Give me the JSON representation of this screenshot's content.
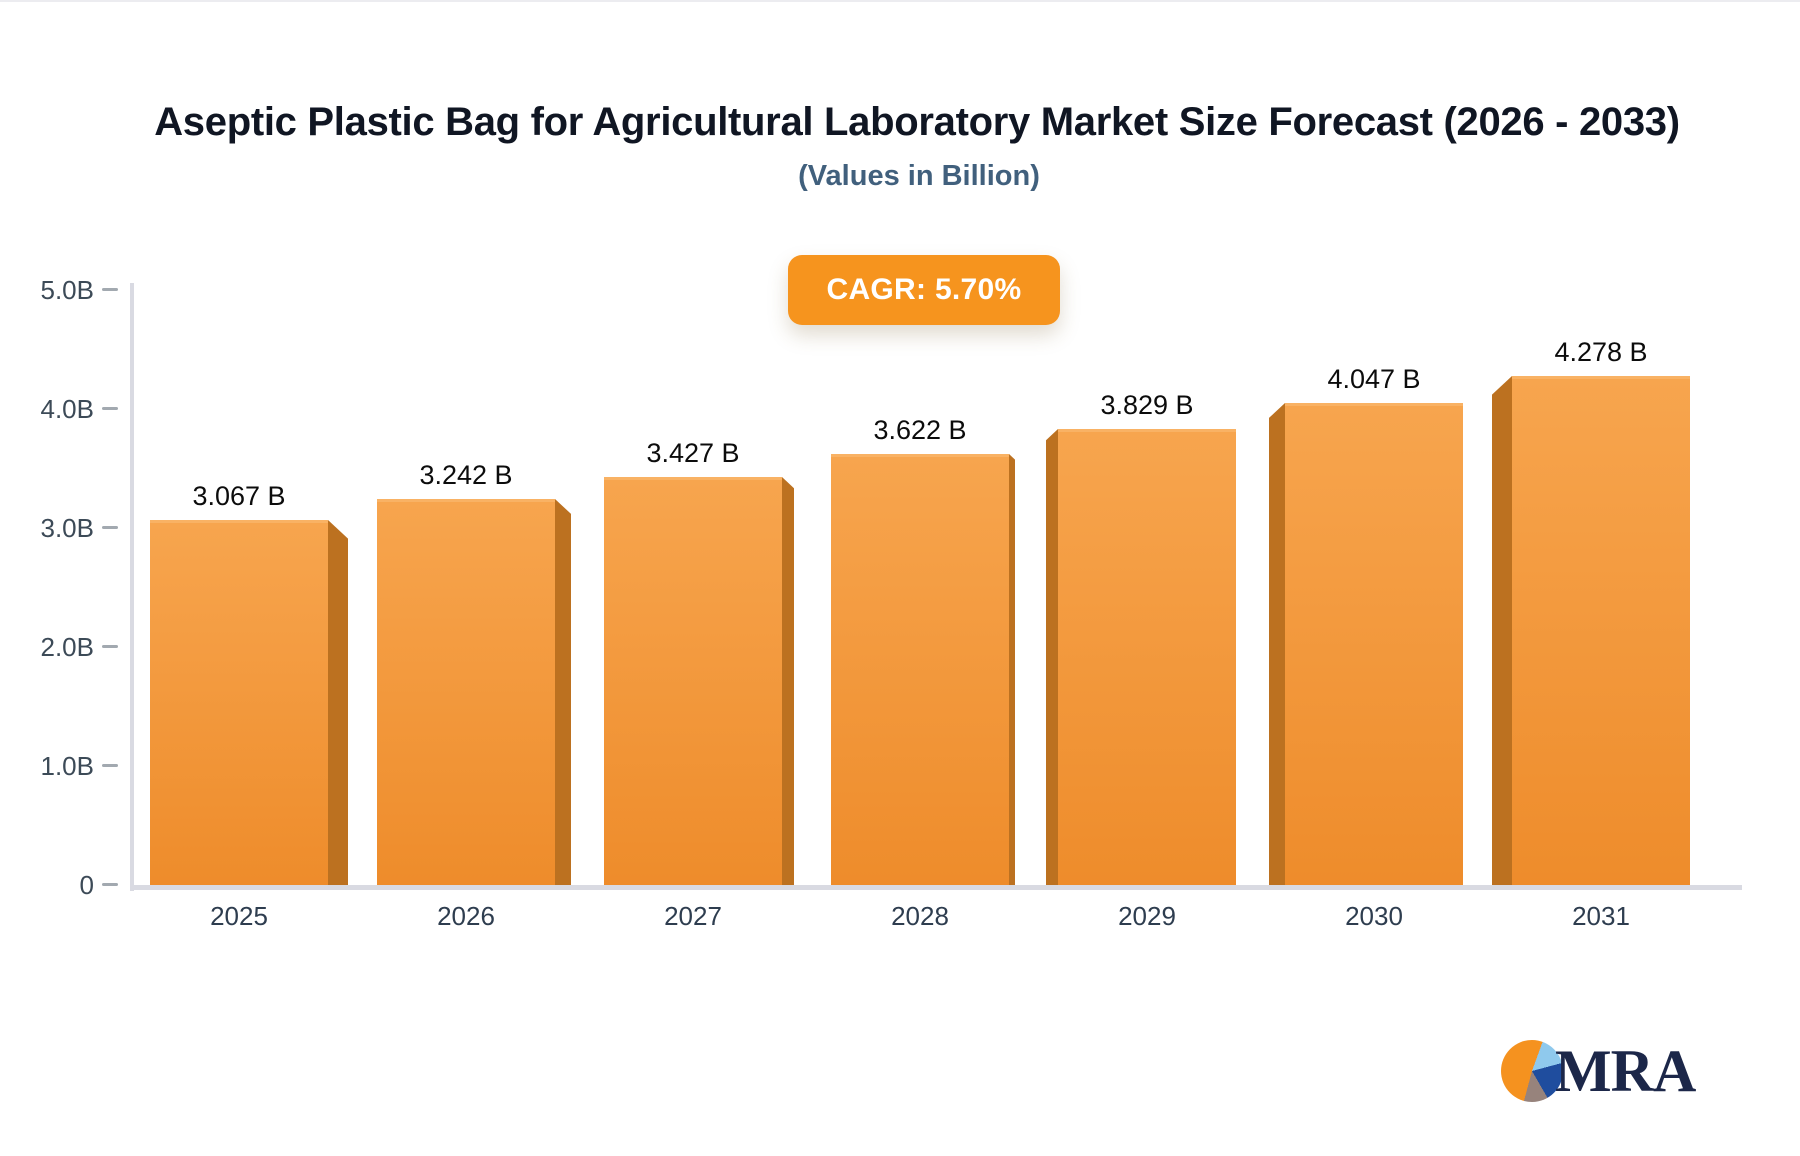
{
  "title": "Aseptic Plastic Bag for Agricultural Laboratory Market Size Forecast (2026 - 2033)",
  "subtitle": "(Values in Billion)",
  "badge": {
    "label": "CAGR: 5.70%"
  },
  "logo": {
    "text": "MRA",
    "icon": "pie-chart-logo-icon",
    "pie_colors": {
      "orange": "#f5921f",
      "light_blue": "#8fc9ed",
      "navy": "#1f4d9e",
      "gray": "#97837c"
    },
    "text_color": "#1c2749"
  },
  "colors": {
    "title_text": "#101623",
    "subtitle_text": "#41607d",
    "badge_bg": "#f6941e",
    "badge_text": "#ffffff",
    "bar_front_top": "#f7a54e",
    "bar_front_bottom": "#ee8c2b",
    "bar_front_highlight": "#f9b264",
    "bar_side": "#bc7120",
    "axis_line": "#d9dae2",
    "tick_dash": "#a2a9b0",
    "y_tick_text": "#3c4a57",
    "x_tick_text": "#2e3d4f",
    "value_label_text": "#0c0c0c"
  },
  "chart_data": {
    "type": "bar",
    "title": "Aseptic Plastic Bag for Agricultural Laboratory Market Size Forecast (2026 - 2033)",
    "subtitle": "(Values in Billion)",
    "cagr_percent": 5.7,
    "categories": [
      "2025",
      "2026",
      "2027",
      "2028",
      "2029",
      "2030",
      "2031"
    ],
    "values": [
      3.067,
      3.242,
      3.427,
      3.622,
      3.829,
      4.047,
      4.278
    ],
    "bar_labels": [
      "3.067 B",
      "3.242 B",
      "3.427 B",
      "3.622 B",
      "3.829 B",
      "4.047 B",
      "4.278 B"
    ],
    "xlabel": "",
    "ylabel": "",
    "ylim": [
      0,
      5
    ],
    "y_ticks": [
      {
        "label": "0",
        "value": 0
      },
      {
        "label": "1.0B",
        "value": 1
      },
      {
        "label": "2.0B",
        "value": 2
      },
      {
        "label": "3.0B",
        "value": 3
      },
      {
        "label": "4.0B",
        "value": 4
      },
      {
        "label": "5.0B",
        "value": 5
      }
    ],
    "grid": false,
    "legend": false,
    "bar_style": "pseudo-3d"
  }
}
